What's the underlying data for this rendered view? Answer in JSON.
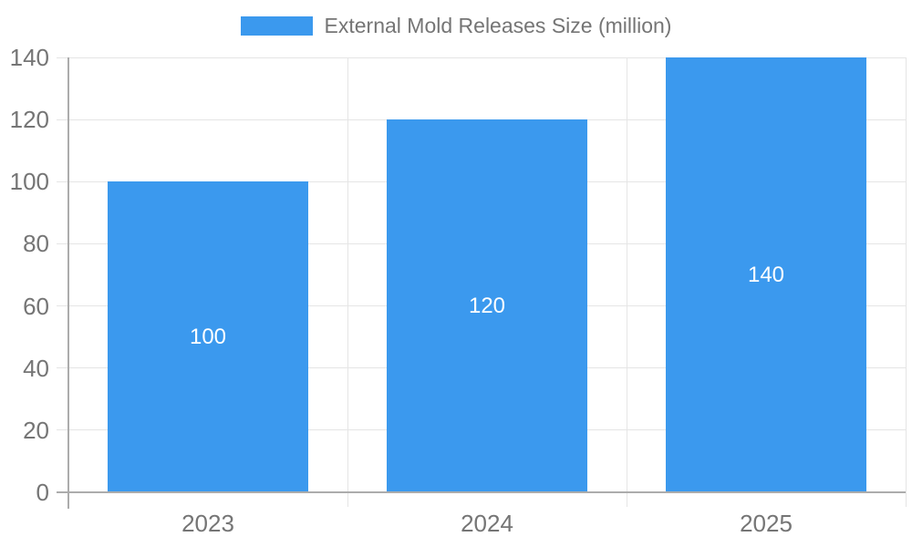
{
  "chart_data": {
    "type": "bar",
    "title": "External Mold Releases Size (million)",
    "legend_position": "top",
    "categories": [
      "2023",
      "2024",
      "2025"
    ],
    "series": [
      {
        "name": "External Mold Releases Size (million)",
        "values": [
          100,
          120,
          140
        ]
      }
    ],
    "data_labels": [
      "100",
      "120",
      "140"
    ],
    "data_label_position": "inside-center",
    "xlabel": "",
    "ylabel": "",
    "ylim": [
      0,
      140
    ],
    "ytick_interval": 20,
    "yticks": [
      "0",
      "20",
      "40",
      "60",
      "80",
      "100",
      "120",
      "140"
    ],
    "grid": true
  },
  "colors": {
    "bar": "#3B99EE",
    "gridline": "#E5E5E5",
    "axis_line": "#ACACAC",
    "axis_text": "#757575",
    "bar_label_text": "#FFFFFF",
    "background": "#FFFFFF"
  }
}
